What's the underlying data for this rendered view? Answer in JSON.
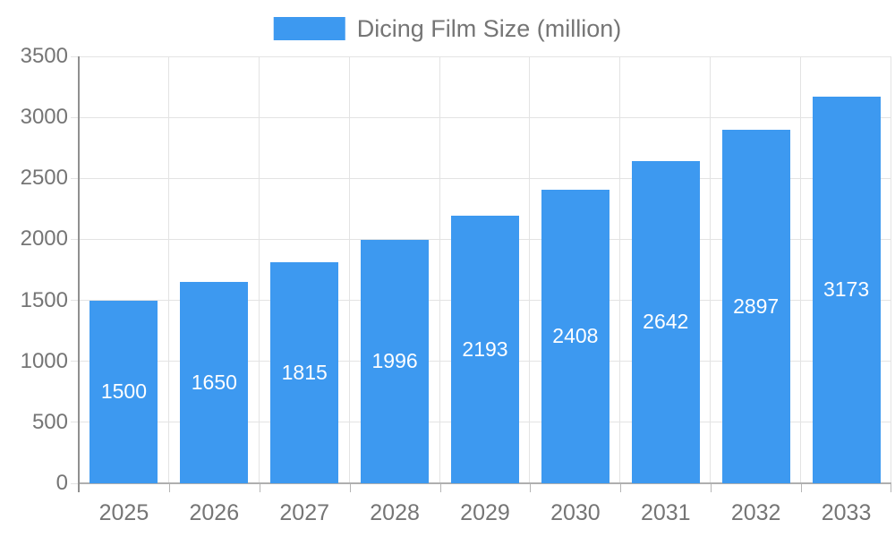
{
  "page": {
    "background": "#ffffff"
  },
  "legend": {
    "label": "Dicing Film Size (million)"
  },
  "colors": {
    "bar": "#3D99F0",
    "grid": "#E3E3E3",
    "axis": "#8F8F8F",
    "baseline": "#AFAFAF",
    "tick": "#B5B5B5",
    "label_text": "#757575",
    "bar_label_text": "#FFFFFF"
  },
  "chart_data": {
    "type": "bar",
    "title": "Dicing Film Size (million)",
    "categories": [
      "2025",
      "2026",
      "2027",
      "2028",
      "2029",
      "2030",
      "2031",
      "2032",
      "2033"
    ],
    "series": [
      {
        "name": "Dicing Film Size (million)",
        "values": [
          1500,
          1650,
          1815,
          1996,
          2193,
          2408,
          2642,
          2897,
          3173
        ]
      }
    ],
    "xlabel": "",
    "ylabel": "",
    "ylim": [
      0,
      3500
    ],
    "ytick_step": 500,
    "yticks": [
      0,
      500,
      1000,
      1500,
      2000,
      2500,
      3000,
      3500
    ],
    "grid": true,
    "legend_position": "top-center",
    "bar_label_position": "inside-center"
  }
}
